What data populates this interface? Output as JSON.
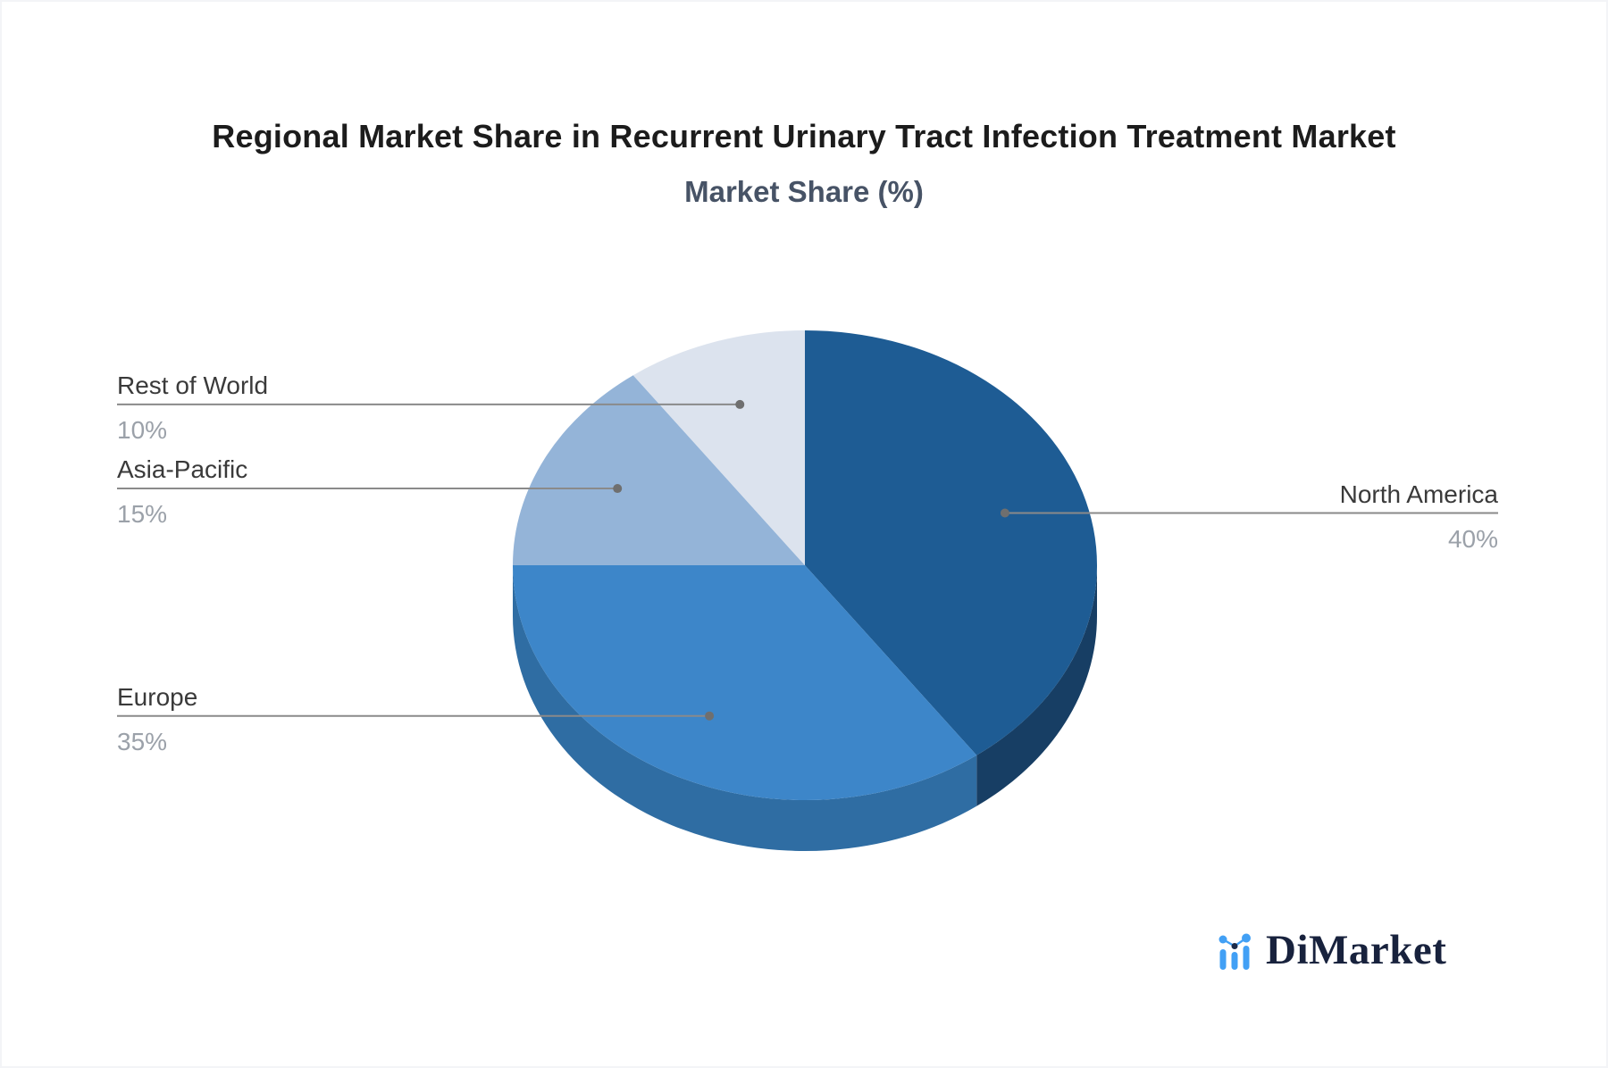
{
  "header": {
    "title": "Regional Market Share in Recurrent Urinary Tract Infection Treatment Market",
    "subtitle": "Market Share (%)"
  },
  "chart_data": {
    "type": "pie",
    "style": "3d",
    "title": "Regional Market Share in Recurrent Urinary Tract Infection Treatment Market",
    "subtitle": "Market Share (%)",
    "unit": "percent",
    "start_angle_deg": 0,
    "direction": "clockwise",
    "legend_position": "callouts",
    "slices": [
      {
        "label": "North America",
        "value": 40,
        "pct": "40%",
        "color": "#1E5C94",
        "side_color": "#173E64",
        "label_side": "right"
      },
      {
        "label": "Europe",
        "value": 35,
        "pct": "35%",
        "color": "#3D86C9",
        "side_color": "#2F6DA3",
        "label_side": "left"
      },
      {
        "label": "Asia-Pacific",
        "value": 15,
        "pct": "15%",
        "color": "#94B4D8",
        "side_color": "#7FA3C9",
        "label_side": "left"
      },
      {
        "label": "Rest of World",
        "value": 10,
        "pct": "10%",
        "color": "#DCE3EE",
        "side_color": "#C4CEDE",
        "label_side": "left"
      }
    ]
  },
  "logo": {
    "text": "DiMarket"
  },
  "colors": {
    "background": "#FFFFFF",
    "title": "#1C1C1C",
    "subtitle": "#475366",
    "label_name": "#3A3A3A",
    "label_pct": "#9BA1A9",
    "leader_line": "#8A8A8A",
    "leader_dot": "#6F6F6F",
    "logo_blue": "#42A0F5",
    "logo_navy": "#1C2B4A",
    "logo_text": "#18223D"
  }
}
